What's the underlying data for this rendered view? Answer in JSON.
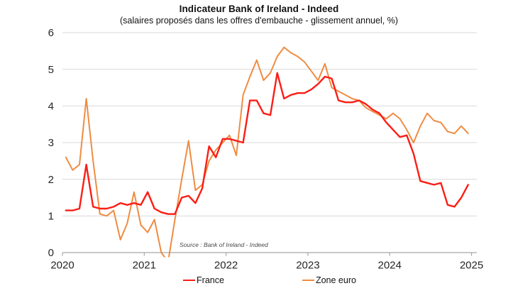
{
  "title": "Indicateur Bank of Ireland - Indeed",
  "subtitle": "(salaires proposés dans les offres d'embauche - glissement annuel, %)",
  "source_note": "Source : Bank of Ireland - Indeed",
  "legend": [
    {
      "label": "France",
      "color": "#fb1d15"
    },
    {
      "label": "Zone euro",
      "color": "#ef8c42"
    }
  ],
  "colors": {
    "gridline": "#d9d9d9",
    "axis_line": "#a6a6a6",
    "france": "#fb1d15",
    "zone_euro": "#ef8c42"
  },
  "chart_data": {
    "type": "line",
    "frequency": "monthly",
    "x_start": "2020-01",
    "x_end": "2024-12",
    "x_tick_labels": [
      "2020",
      "2021",
      "2022",
      "2023",
      "2024",
      "2025"
    ],
    "y_ticks": [
      "0",
      "1",
      "2",
      "3",
      "4",
      "5",
      "6"
    ],
    "ylim": [
      0,
      6
    ],
    "grid": "horizontal",
    "legend_position": "bottom",
    "series": [
      {
        "name": "France",
        "color": "#fb1d15",
        "values": [
          1.15,
          1.15,
          1.2,
          2.4,
          1.25,
          1.2,
          1.2,
          1.25,
          1.35,
          1.3,
          1.35,
          1.3,
          1.65,
          1.2,
          1.1,
          1.05,
          1.05,
          1.5,
          1.55,
          1.35,
          1.75,
          2.9,
          2.6,
          3.1,
          3.1,
          3.05,
          3.0,
          4.15,
          4.15,
          3.8,
          3.75,
          4.9,
          4.2,
          4.3,
          4.35,
          4.35,
          4.45,
          4.6,
          4.8,
          4.75,
          4.15,
          4.1,
          4.1,
          4.15,
          4.05,
          3.9,
          3.8,
          3.55,
          3.35,
          3.15,
          3.2,
          2.7,
          1.95,
          1.9,
          1.85,
          1.9,
          1.3,
          1.25,
          1.5,
          1.85
        ]
      },
      {
        "name": "Zone euro",
        "color": "#ef8c42",
        "values": [
          2.6,
          2.25,
          2.4,
          4.2,
          2.5,
          1.05,
          1.0,
          1.15,
          0.35,
          0.8,
          1.65,
          0.75,
          0.55,
          0.9,
          0.0,
          -0.25,
          0.9,
          2.0,
          3.05,
          1.7,
          1.85,
          2.5,
          2.8,
          3.0,
          3.2,
          2.65,
          4.3,
          4.8,
          5.25,
          4.7,
          4.9,
          5.35,
          5.6,
          5.45,
          5.35,
          5.2,
          4.95,
          4.7,
          5.15,
          4.5,
          4.4,
          4.3,
          4.2,
          4.15,
          3.95,
          3.85,
          3.75,
          3.65,
          3.8,
          3.65,
          3.35,
          3.0,
          3.45,
          3.8,
          3.6,
          3.55,
          3.3,
          3.25,
          3.45,
          3.25
        ]
      }
    ]
  }
}
